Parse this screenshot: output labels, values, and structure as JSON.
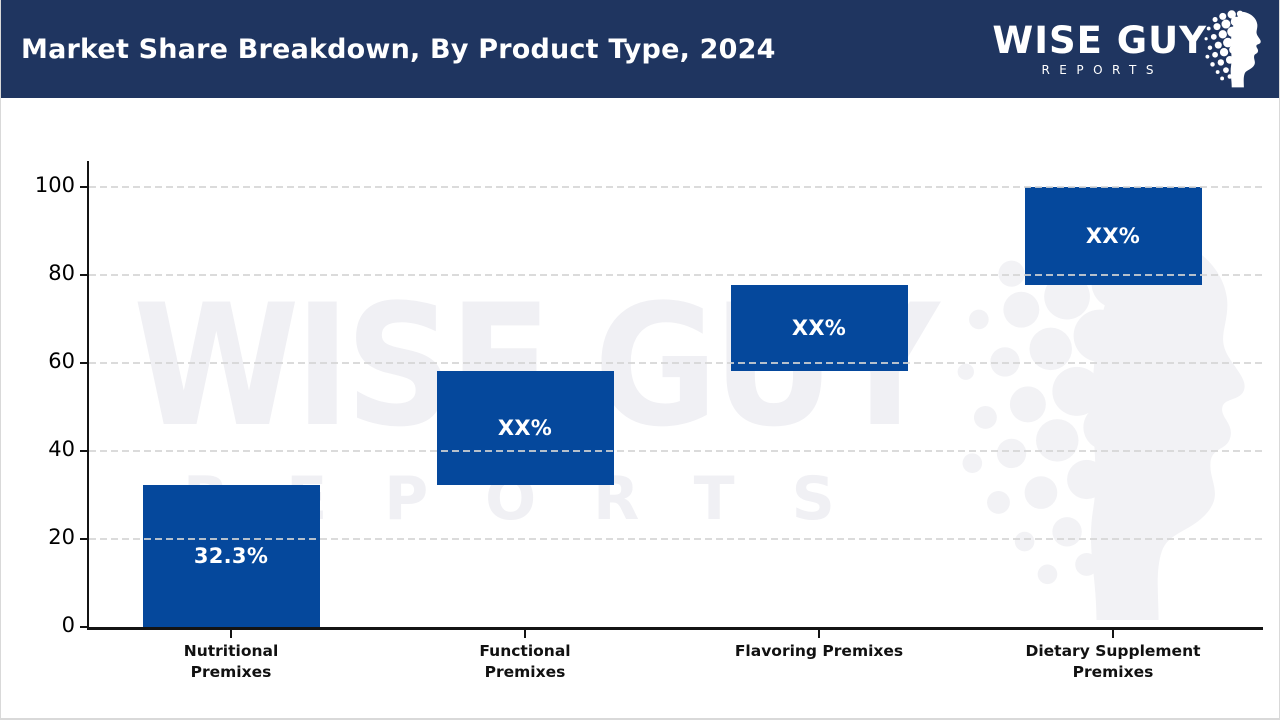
{
  "header": {
    "title": "Market Share Breakdown, By Product Type, 2024",
    "background_color": "#1f3560",
    "logo": {
      "wordmark": "WISE GUY",
      "subtext": "REPORTS",
      "head_icon": "dotted-head-profile"
    }
  },
  "watermark": {
    "wordmark": "WISE GUY",
    "subtext": "REPORTS",
    "head_icon": "dotted-head-profile"
  },
  "chart_data": {
    "type": "bar",
    "subtype": "waterfall",
    "title": "Market Share Breakdown, By Product Type, 2024",
    "categories": [
      "Nutritional\nPremixes",
      "Functional\nPremixes",
      "Flavoring Premixes",
      "Dietary Supplement\nPremixes"
    ],
    "segments": [
      {
        "category": "Nutritional Premixes",
        "start": 0,
        "end": 32.3,
        "label": "32.3%"
      },
      {
        "category": "Functional Premixes",
        "start": 32.3,
        "end": 58.2,
        "label": "XX%"
      },
      {
        "category": "Flavoring Premixes",
        "start": 58.2,
        "end": 77.8,
        "label": "XX%"
      },
      {
        "category": "Dietary Supplement Premixes",
        "start": 77.8,
        "end": 100,
        "label": "XX%"
      }
    ],
    "yticks": [
      0,
      20,
      40,
      60,
      80,
      100
    ],
    "ylim": [
      0,
      106
    ],
    "xlabel": "",
    "ylabel": "",
    "grid": "horizontal-dashed",
    "legend": "none",
    "bar_color": "#05489c",
    "value_label_color": "#ffffff",
    "axis_color": "#141414"
  }
}
